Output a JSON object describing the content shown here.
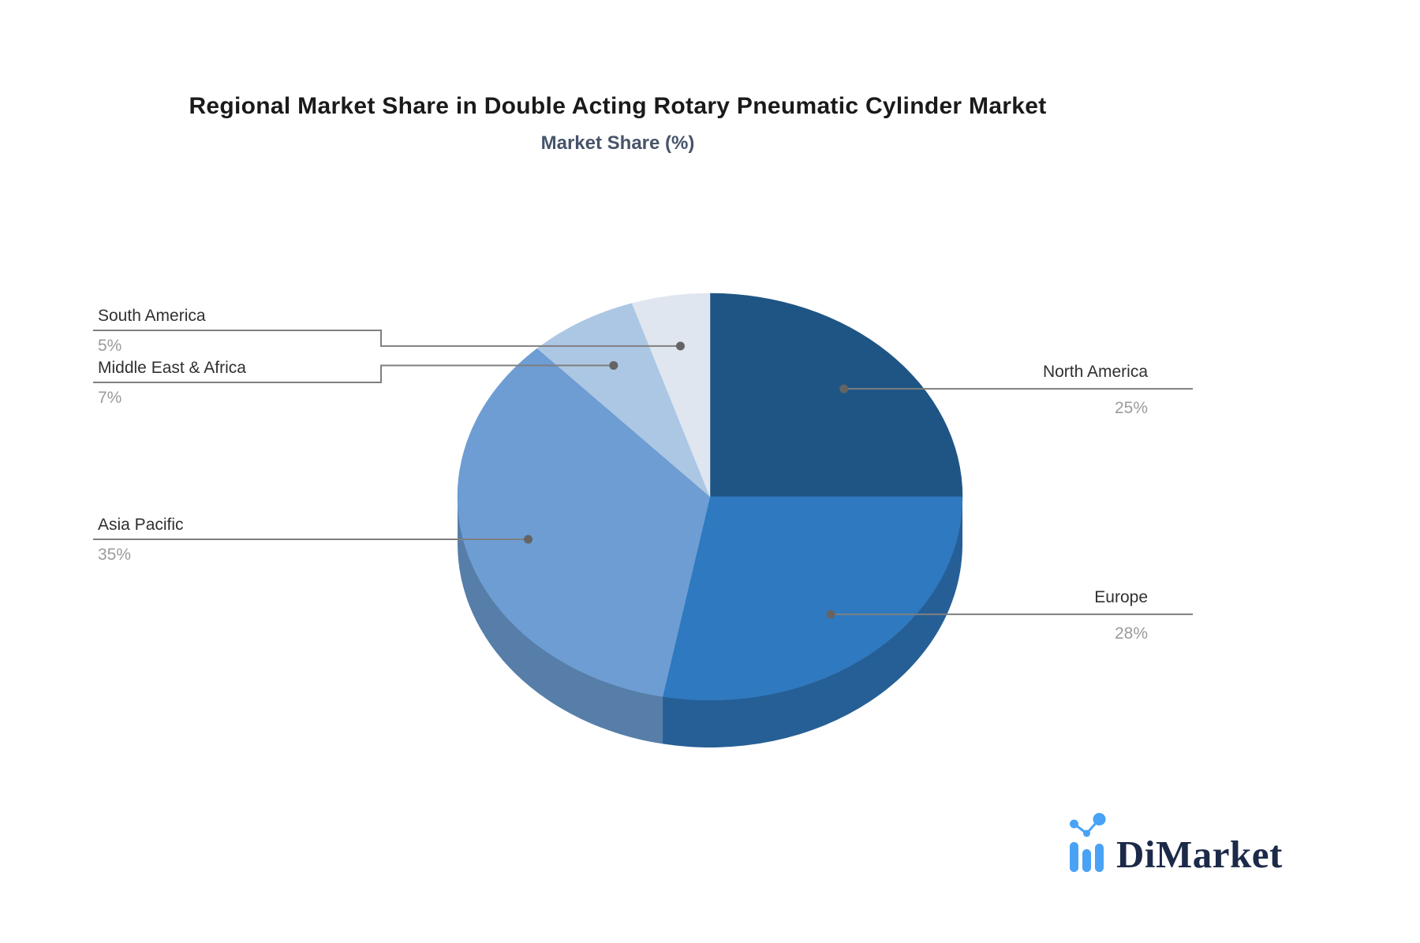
{
  "header": {
    "title": "Regional Market Share in Double Acting Rotary Pneumatic Cylinder Market",
    "subtitle": "Market Share (%)"
  },
  "chart_data": {
    "type": "pie",
    "title": "Regional Market Share in Double Acting Rotary Pneumatic Cylinder Market",
    "subtitle": "Market Share (%)",
    "unit": "%",
    "effect": "3d",
    "legend_position": "none",
    "label_style": "callout-leader-lines",
    "start_angle": "12-oclock",
    "direction": "clockwise",
    "slices": [
      {
        "label": "North America",
        "value": 25,
        "display": "25%",
        "color": "#1E5585",
        "side_color": "#173F63"
      },
      {
        "label": "Europe",
        "value": 28,
        "display": "28%",
        "color": "#2E79BF",
        "side_color": "#265F96"
      },
      {
        "label": "Asia Pacific",
        "value": 35,
        "display": "35%",
        "color": "#6D9DD3",
        "side_color": "#567EA9"
      },
      {
        "label": "Middle East & Africa",
        "value": 7,
        "display": "7%",
        "color": "#ACC7E3",
        "side_color": "#8BA3BD"
      },
      {
        "label": "South America",
        "value": 5,
        "display": "5%",
        "color": "#DFE6F0",
        "side_color": "#B8C4D3"
      }
    ],
    "leader_line_color": "#7f7f7f",
    "leader_dot_color": "#646464",
    "label_text_color": "#303030",
    "value_text_color": "#9b9b9b"
  },
  "brand": {
    "name": "DiMarket",
    "icon": "bar-chart-logo",
    "text_color": "#1B2A48",
    "accent_color": "#49A2F5"
  }
}
